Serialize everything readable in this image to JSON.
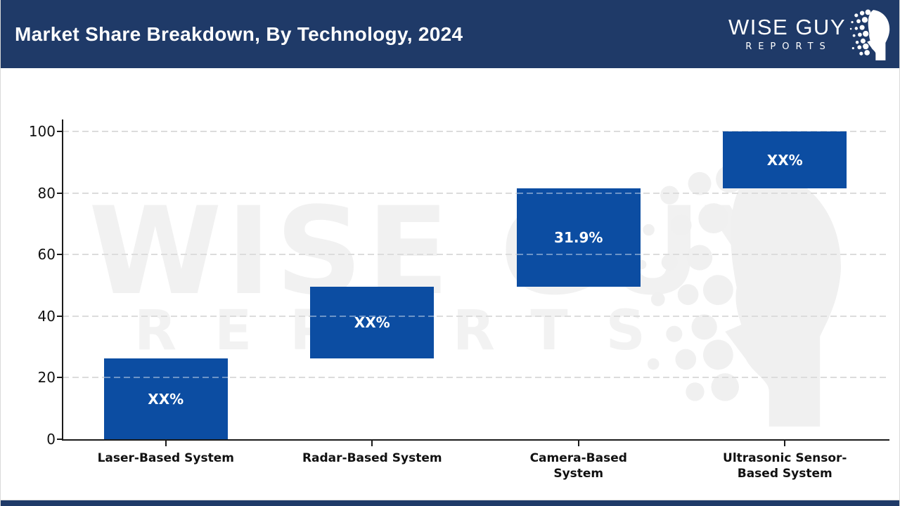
{
  "header": {
    "title": "Market Share Breakdown, By Technology, 2024",
    "logo": {
      "line1": "WISE GUY",
      "line2": "REPORTS"
    }
  },
  "watermark": {
    "line1": "WISE GUY",
    "line2": "REPORTS"
  },
  "colors": {
    "header_navy": "#1f3a68",
    "bar_blue": "#0c4da2",
    "grid_gray": "#dcdcdc",
    "watermark_gray": "#f1f1f1",
    "footer_navy": "#1f3a68"
  },
  "chart_data": {
    "type": "bar",
    "subtype": "waterfall",
    "title": "Market Share Breakdown, By Technology, 2024",
    "categories": [
      "Laser-Based System",
      "Radar-Based System",
      "Camera-Based\nSystem",
      "Ultrasonic Sensor-\nBased System"
    ],
    "segments": [
      {
        "category": "Laser-Based System",
        "start": 0,
        "end": 26.2,
        "value": 26.2,
        "label": "XX%"
      },
      {
        "category": "Radar-Based System",
        "start": 26.2,
        "end": 49.5,
        "value": 23.3,
        "label": "XX%"
      },
      {
        "category": "Camera-Based System",
        "start": 49.5,
        "end": 81.4,
        "value": 31.9,
        "label": "31.9%"
      },
      {
        "category": "Ultrasonic Sensor-Based System",
        "start": 81.4,
        "end": 100,
        "value": 18.6,
        "label": "XX%"
      }
    ],
    "xlabel": "",
    "ylabel": "",
    "ylim": [
      0,
      100
    ],
    "yticks": [
      0,
      20,
      40,
      60,
      80,
      100
    ],
    "grid": "horizontal-dashed",
    "legend": "none",
    "bar_color": "#0c4da2",
    "bar_label_color": "#ffffff"
  }
}
